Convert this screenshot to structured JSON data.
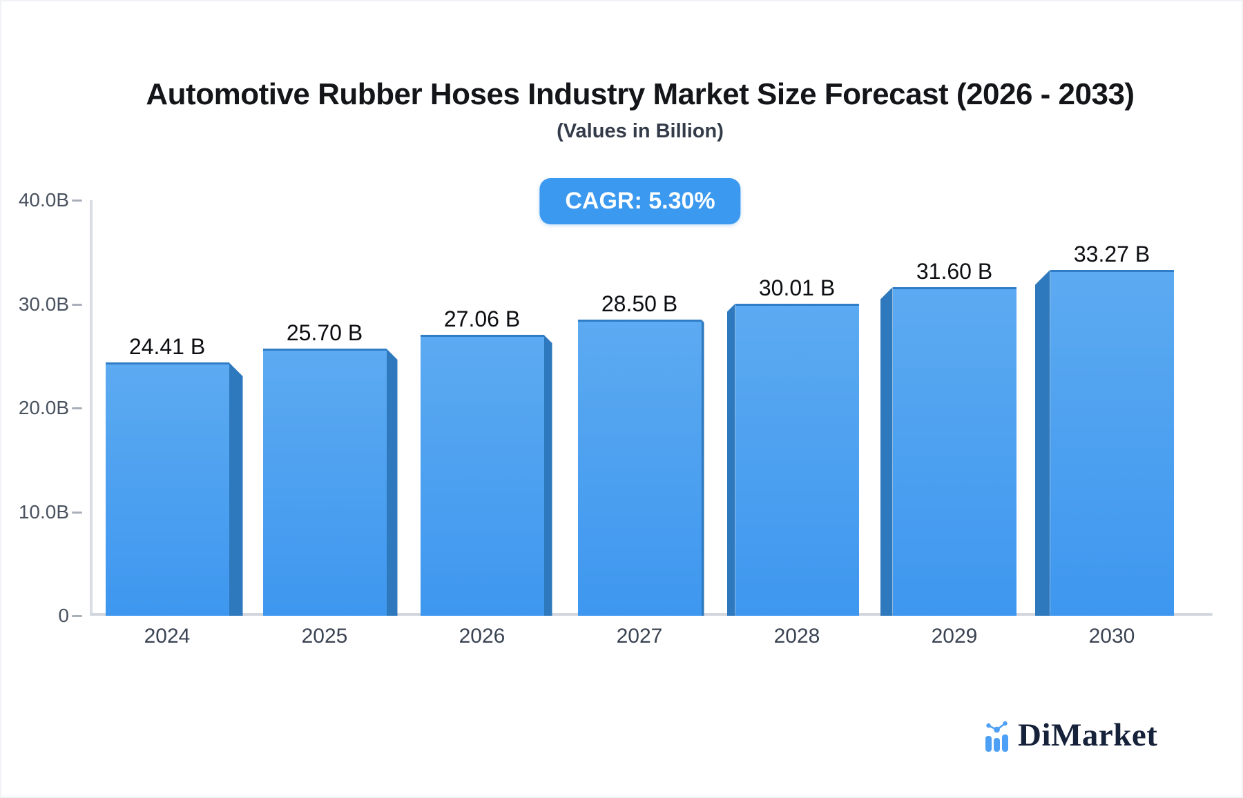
{
  "header": {
    "title": "Automotive Rubber Hoses Industry Market Size Forecast (2026 - 2033)",
    "subtitle": "(Values in Billion)",
    "cagr_badge": "CAGR: 5.30%",
    "cagr_color": "#3b99f0"
  },
  "chart_data": {
    "type": "bar",
    "title": "Automotive Rubber Hoses Industry Market Size Forecast (2026 - 2033)",
    "subtitle": "(Values in Billion)",
    "cagr": "5.30%",
    "categories": [
      "2024",
      "2025",
      "2026",
      "2027",
      "2028",
      "2029",
      "2030"
    ],
    "values": [
      24.41,
      25.7,
      27.06,
      28.5,
      30.01,
      31.6,
      33.27
    ],
    "value_labels": [
      "24.41 B",
      "25.70 B",
      "27.06 B",
      "28.50 B",
      "30.01 B",
      "31.60 B",
      "33.27 B"
    ],
    "y_ticks": [
      {
        "value": 0,
        "label": "0"
      },
      {
        "value": 10,
        "label": "10.0B"
      },
      {
        "value": 20,
        "label": "20.0B"
      },
      {
        "value": 30,
        "label": "30.0B"
      },
      {
        "value": 40,
        "label": "40.0B"
      }
    ],
    "ylim": [
      0,
      40
    ],
    "grid": false,
    "legend": false,
    "bar_color_top": "#5caaf1",
    "bar_color_bottom": "#3e97ef",
    "bar_side_color": "#2e79bd",
    "bar_top_edge_color": "#2f7dc6"
  },
  "footer": {
    "brand": "DiMarket"
  }
}
